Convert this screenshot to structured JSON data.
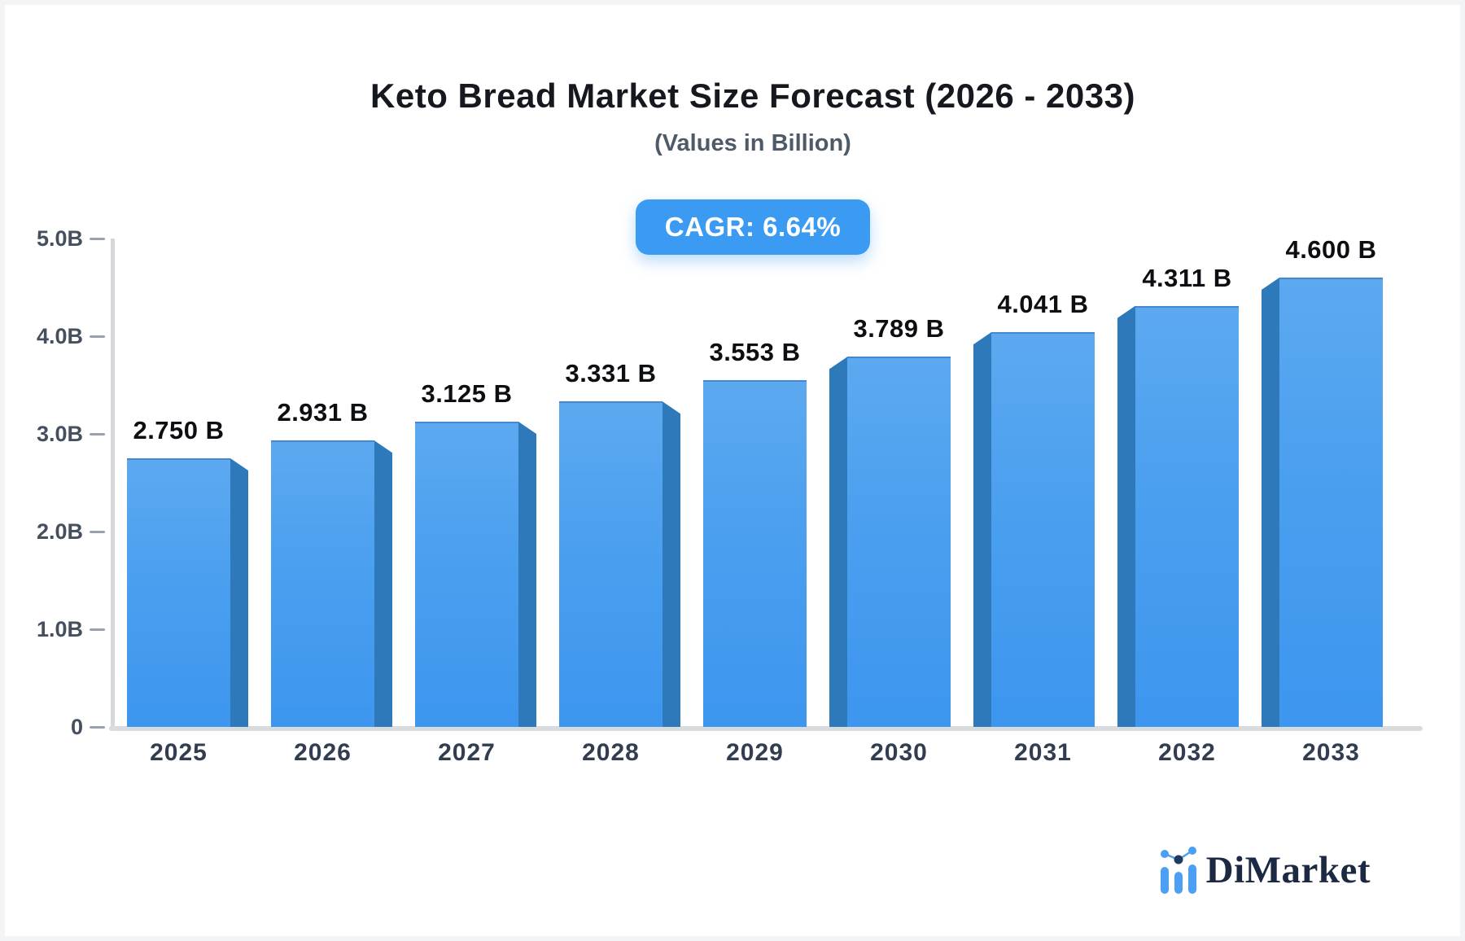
{
  "title": "Keto Bread Market Size Forecast (2026 - 2033)",
  "subtitle": "(Values in Billion)",
  "badge": {
    "label": "CAGR: 6.64%"
  },
  "chart_data": {
    "type": "bar",
    "title": "Keto Bread Market Size Forecast (2026 - 2033)",
    "subtitle": "(Values in Billion)",
    "xlabel": "",
    "ylabel": "",
    "categories": [
      "2025",
      "2026",
      "2027",
      "2028",
      "2029",
      "2030",
      "2031",
      "2032",
      "2033"
    ],
    "values": [
      2.75,
      2.931,
      3.125,
      3.331,
      3.553,
      3.789,
      4.041,
      4.311,
      4.6
    ],
    "value_labels": [
      "2.750 B",
      "2.931 B",
      "3.125 B",
      "3.331 B",
      "3.553 B",
      "3.789 B",
      "4.041 B",
      "4.311 B",
      "4.600 B"
    ],
    "ylim": [
      0,
      5
    ],
    "y_ticks": [
      {
        "label": "5.0B",
        "value": 5
      },
      {
        "label": "4.0B",
        "value": 4
      },
      {
        "label": "3.0B",
        "value": 3
      },
      {
        "label": "2.0B",
        "value": 2
      },
      {
        "label": "1.0B",
        "value": 1
      },
      {
        "label": "0",
        "value": 0
      }
    ],
    "grid": false,
    "legend": "none",
    "annotation": "CAGR: 6.64%",
    "bar_face_color_top": "#5CA9F0",
    "bar_face_color_bottom": "#3D96EF",
    "bar_side_color": "#2E79BA"
  },
  "logo": {
    "text": "DiMarket",
    "icon": "bar-chart-logo-icon",
    "text_color": "#1b2943",
    "accent_color": "#4BA0F4",
    "dot_color": "#1E3A5F"
  }
}
